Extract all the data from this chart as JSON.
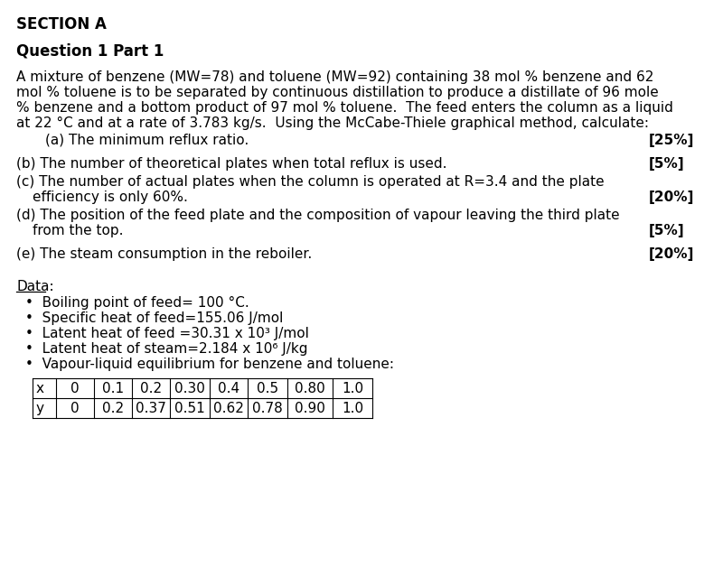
{
  "section_title": "SECTION A",
  "question_title": "Question 1 Part 1",
  "paragraph_lines": [
    "A mixture of benzene (MW=78) and toluene (MW=92) containing 38 mol % benzene and 62",
    "mol % toluene is to be separated by continuous distillation to produce a distillate of 96 mole",
    "% benzene and a bottom product of 97 mol % toluene.  The feed enters the column as a liquid",
    "at 22 °C and at a rate of 3.783 kg/s.  Using the McCabe-Thiele graphical method, calculate:"
  ],
  "data_label": "Data:",
  "bullet_points": [
    "Boiling point of feed= 100 °C.",
    "Specific heat of feed=155.06 J/mol",
    "Latent heat of feed =30.31 x 10³ J/mol",
    "Latent heat of steam=2.184 x 10⁶ J/kg",
    "Vapour-liquid equilibrium for benzene and toluene:"
  ],
  "table_x_label": "x",
  "table_y_label": "y",
  "table_x": [
    "0",
    "0.1",
    "0.2",
    "0.30",
    "0.4",
    "0.5",
    "0.80",
    "1.0"
  ],
  "table_y": [
    "0",
    "0.2",
    "0.37",
    "0.51",
    "0.62",
    "0.78",
    "0.90",
    "1.0"
  ],
  "bg_color": "#ffffff",
  "text_color": "#000000",
  "font_size": 11,
  "title_font_size": 12,
  "mark_font_size": 11
}
